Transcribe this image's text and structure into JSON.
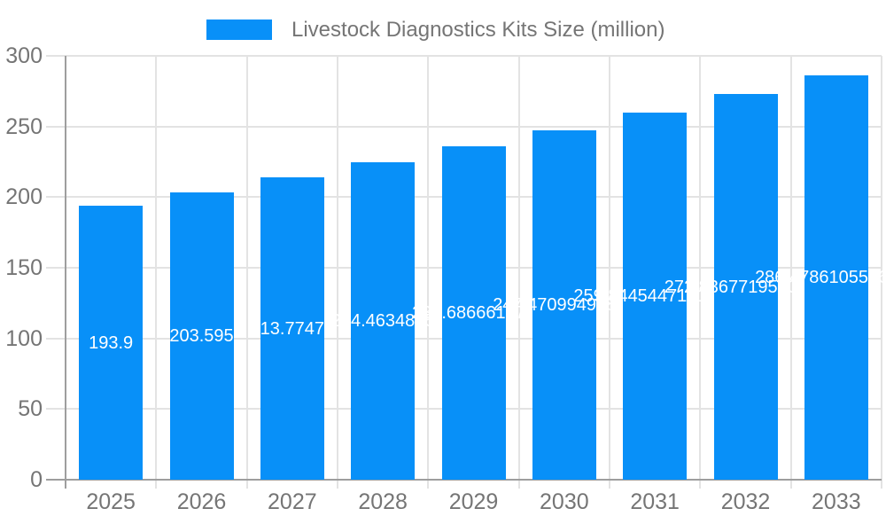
{
  "legend": {
    "label": "Livestock Diagnostics Kits Size (million)"
  },
  "chart_data": {
    "type": "bar",
    "title": "Livestock Diagnostics Kits Size (million)",
    "legend_position": "top",
    "grid": true,
    "xlabel": "",
    "ylabel": "",
    "categories": [
      "2025",
      "2026",
      "2027",
      "2028",
      "2029",
      "2030",
      "2031",
      "2032",
      "2033"
    ],
    "values": [
      193.9,
      203.595,
      213.77475,
      224.4634875,
      235.686661875,
      247.47099496875,
      259.8445447171875,
      272.8367719530469,
      286.4786105506992
    ],
    "bar_labels": [
      "193.9",
      "203.595",
      "213.77475",
      "224.4634875",
      "235.686661875",
      "247.47099496875",
      "259.8445447171875",
      "272.8367719530469",
      "286.4786105506992"
    ],
    "ylim": [
      0,
      300
    ],
    "yticks": [
      0,
      50,
      100,
      150,
      200,
      250,
      300
    ],
    "colors": {
      "bar": "#0890f8",
      "axis_line": "#9e9e9e",
      "gridline": "#e3e3e3",
      "tick_label": "#757575",
      "legend_text": "#757575",
      "bar_value_label": "#ffffff",
      "background": "#ffffff"
    }
  }
}
